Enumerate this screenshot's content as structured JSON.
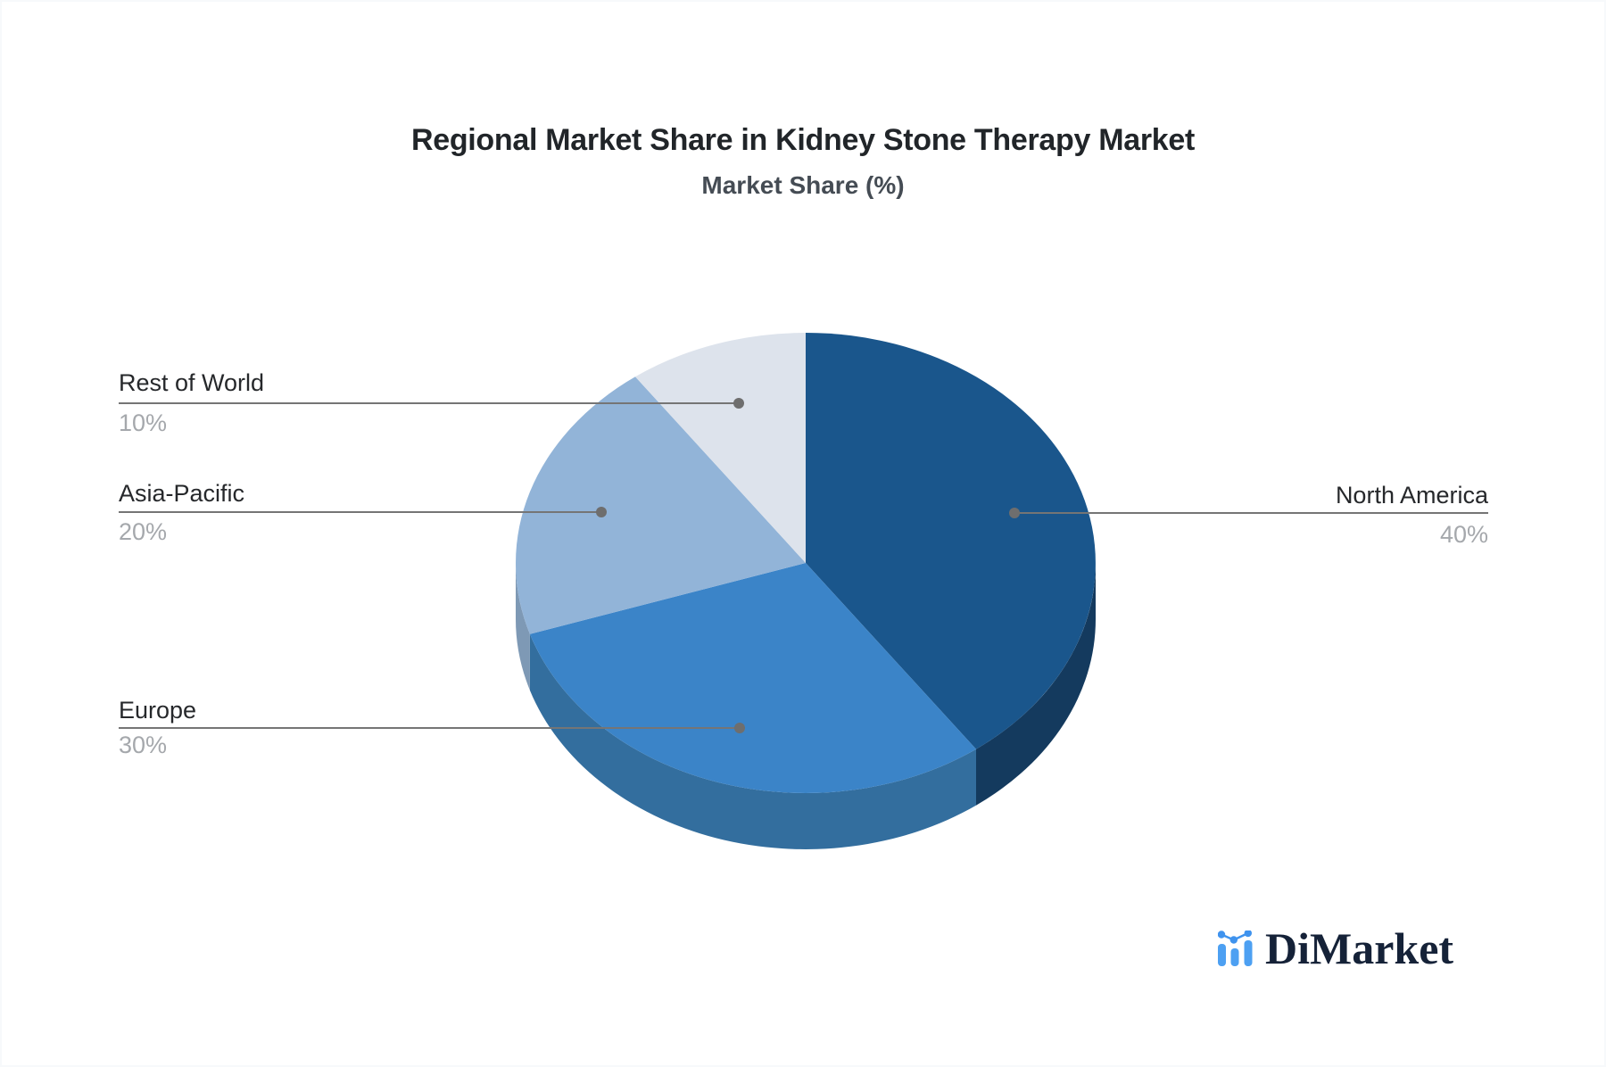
{
  "chart_data": {
    "type": "pie",
    "style": "3d-pie",
    "title": "Regional Market Share in Kidney Stone Therapy Market",
    "subtitle": "Market Share (%)",
    "unit": "%",
    "direction": "clockwise",
    "start_angle": "12-oclock",
    "legend_position": "none",
    "labels_layout": "callout-lines",
    "slices": [
      {
        "label": "North America",
        "value": 40,
        "pct_label": "40%",
        "color": "#1a568c",
        "side_color": "#143a5e"
      },
      {
        "label": "Europe",
        "value": 30,
        "pct_label": "30%",
        "color": "#3b84c8",
        "side_color": "#336e9e"
      },
      {
        "label": "Asia-Pacific",
        "value": 20,
        "pct_label": "20%",
        "color": "#92b4d8",
        "side_color": "#7e99b5"
      },
      {
        "label": "Rest of World",
        "value": 10,
        "pct_label": "10%",
        "color": "#dde3ec",
        "side_color": "#c2cbd9"
      }
    ]
  },
  "callouts": {
    "line_color": "#757575",
    "dot_color": "#6e6e6e"
  },
  "branding": {
    "logo_text": "DiMarket",
    "logo_text_color": "#152238",
    "logo_icon_color": "#4da0f2",
    "logo_accent_color": "#3f93ee"
  },
  "page": {
    "background_color": "#ffffff"
  }
}
